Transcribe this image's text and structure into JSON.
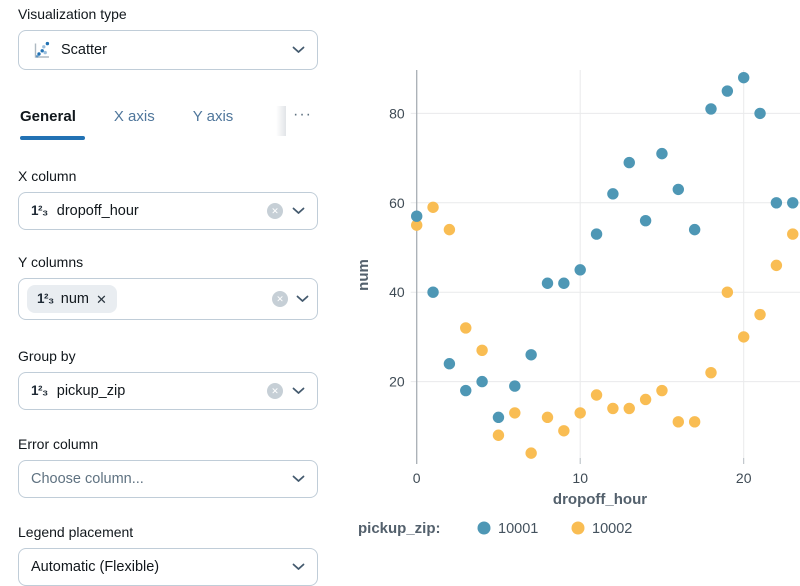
{
  "panel": {
    "viz": {
      "label": "Visualization type",
      "value": "Scatter"
    },
    "tabs": [
      {
        "label": "General",
        "active": true
      },
      {
        "label": "X axis",
        "active": false
      },
      {
        "label": "Y axis",
        "active": false
      }
    ],
    "more_tabs": "···",
    "fields": [
      {
        "label": "X column",
        "value": "dropoff_hour"
      },
      {
        "label": "Y columns",
        "chip_value": "num"
      },
      {
        "label": "Group by",
        "value": "pickup_zip"
      },
      {
        "label": "Error column",
        "placeholder": "Choose column..."
      },
      {
        "label": "Legend placement",
        "value": "Automatic (Flexible)"
      }
    ]
  },
  "icons": {
    "numeric": "1²₃",
    "clear": "✕",
    "chip_remove": "✕"
  },
  "colors": {
    "accent_blue": "#2272B4",
    "series_blue": "#4E97B5",
    "series_yellow": "#F9BD53",
    "grid": "#E9EAEB",
    "zeroline": "#A8AEB4",
    "tick_text": "#3F4B55",
    "axis_title": "#53606C"
  },
  "chart_data": {
    "type": "scatter",
    "title": "",
    "xlabel": "dropoff_hour",
    "ylabel": "num",
    "legend_title": "pickup_zip:",
    "legend_position": "bottom",
    "grid": true,
    "x_ticks": [
      0,
      10,
      20
    ],
    "y_ticks": [
      20,
      40,
      60,
      80
    ],
    "xlim": [
      -1.5,
      24.5
    ],
    "ylim": [
      0,
      92
    ],
    "x": [
      0,
      1,
      2,
      3,
      4,
      5,
      6,
      7,
      8,
      9,
      10,
      11,
      12,
      13,
      14,
      15,
      16,
      17,
      18,
      19,
      20,
      21,
      22,
      23
    ],
    "series": [
      {
        "name": "10001",
        "color": "#4E97B5",
        "values": [
          57,
          40,
          24,
          18,
          20,
          12,
          19,
          26,
          42,
          42,
          45,
          53,
          62,
          69,
          56,
          71,
          63,
          54,
          81,
          85,
          88,
          80,
          60,
          60
        ]
      },
      {
        "name": "10002",
        "color": "#F9BD53",
        "values": [
          55,
          59,
          54,
          32,
          27,
          8,
          13,
          4,
          12,
          9,
          13,
          17,
          14,
          14,
          16,
          18,
          11,
          11,
          22,
          40,
          30,
          35,
          46,
          53
        ]
      }
    ]
  }
}
